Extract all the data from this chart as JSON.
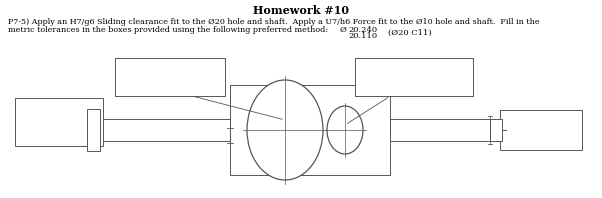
{
  "title": "Homework #10",
  "title_fontsize": 8,
  "body_text_line1": "P7-5) Apply an H7/g6 Sliding clearance fit to the Ø20 hole and shaft.  Apply a U7/h6 Force fit to the Ø10 hole and shaft.  Fill in the",
  "body_text_line2": "metric tolerances in the boxes provided using the following preferred method:",
  "body_fontsize": 5.8,
  "annotation_symbol": "Ø",
  "annotation_line1": "20.240",
  "annotation_line2": "20.110",
  "annotation_extra": "(Ø20 C11)",
  "annotation_fontsize": 6.0,
  "bg_color": "#ffffff",
  "line_color": "#000000",
  "draw_color": "#555555",
  "dash_color": "#aaaaaa"
}
